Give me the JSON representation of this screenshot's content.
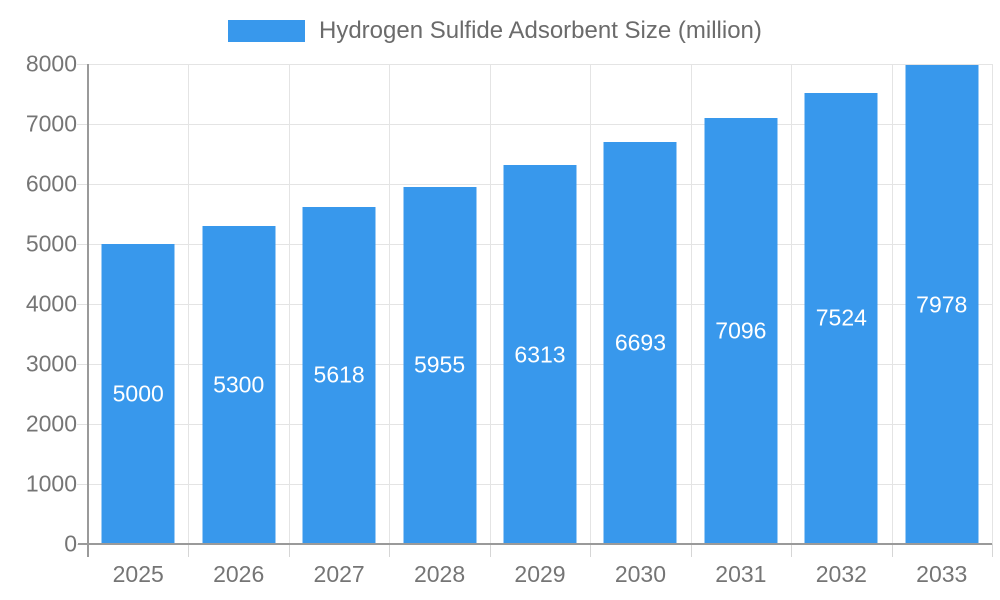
{
  "legend": {
    "label": "Hydrogen Sulfide Adsorbent Size (million)",
    "swatch_color": "#3898EC"
  },
  "chart_data": {
    "type": "bar",
    "title": "",
    "xlabel": "",
    "ylabel": "",
    "series_name": "Hydrogen Sulfide Adsorbent Size (million)",
    "categories": [
      "2025",
      "2026",
      "2027",
      "2028",
      "2029",
      "2030",
      "2031",
      "2032",
      "2033"
    ],
    "values": [
      5000,
      5300,
      5618,
      5955,
      6313,
      6693,
      7096,
      7524,
      7978
    ],
    "bar_labels": [
      "5000",
      "5300",
      "5618",
      "5955",
      "6313",
      "6693",
      "7096",
      "7524",
      "7978"
    ],
    "ylim": [
      0,
      8000
    ],
    "yticks": [
      0,
      1000,
      2000,
      3000,
      4000,
      5000,
      6000,
      7000,
      8000
    ],
    "grid": true,
    "legend_position": "top",
    "colors": {
      "bar": "#3898EC",
      "bar_label_text": "#ffffff",
      "gridline": "#e4e4e4",
      "axis_line": "#9a9a9a",
      "axis_text": "#757575",
      "legend_text": "#6b6b6b",
      "background": "#ffffff"
    }
  }
}
